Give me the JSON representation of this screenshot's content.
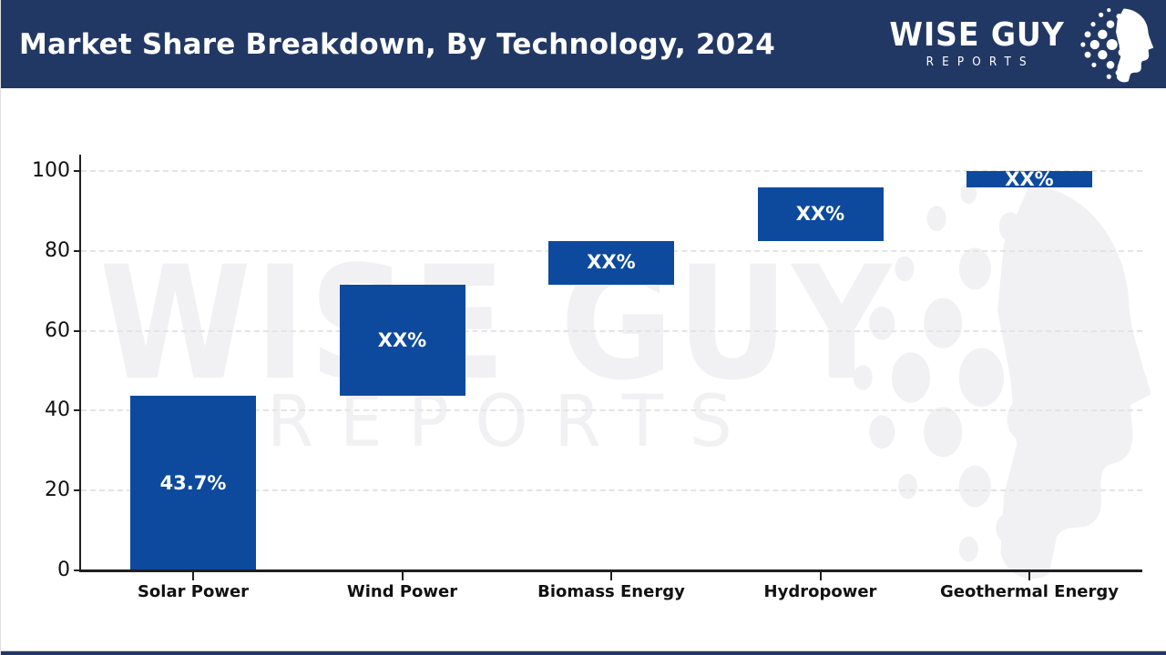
{
  "header": {
    "title": "Market Share Breakdown, By Technology, 2024",
    "logo": {
      "line1": "WISE GUY",
      "line2": "REPORTS"
    }
  },
  "watermark": {
    "line1": "WISE GUY",
    "line2": "REPORTS"
  },
  "colors": {
    "header_bg": "#223864",
    "bar_blue": "#0d4a9e",
    "axis": "#1f1f1f",
    "grid": "#e4e4e4",
    "watermark": "#f1f1f3",
    "bar_label_text": "#ffffff"
  },
  "chart_data": {
    "type": "bar",
    "subtype": "waterfall",
    "title": "Market Share Breakdown, By Technology, 2024",
    "xlabel": "",
    "ylabel": "",
    "ylim": [
      0,
      100
    ],
    "yticks": [
      0,
      20,
      40,
      60,
      80,
      100
    ],
    "grid": "horizontal-dashed",
    "legend": "none",
    "bar_color": "#0d4a9e",
    "categories": [
      "Solar Power",
      "Wind Power",
      "Biomass Energy",
      "Hydropower",
      "Geothermal Energy"
    ],
    "segments": [
      {
        "category": "Solar Power",
        "start": 0,
        "end": 43.7,
        "value_shown": "43.7%",
        "label": "43.7%"
      },
      {
        "category": "Wind Power",
        "start": 43.7,
        "end": 71.5,
        "value_shown": "masked",
        "label": "XX%"
      },
      {
        "category": "Biomass Energy",
        "start": 71.5,
        "end": 82.5,
        "value_shown": "masked",
        "label": "XX%"
      },
      {
        "category": "Hydropower",
        "start": 82.5,
        "end": 95.8,
        "value_shown": "masked",
        "label": "XX%"
      },
      {
        "category": "Geothermal Energy",
        "start": 95.8,
        "end": 100,
        "value_shown": "masked",
        "label": "XX%"
      }
    ]
  }
}
